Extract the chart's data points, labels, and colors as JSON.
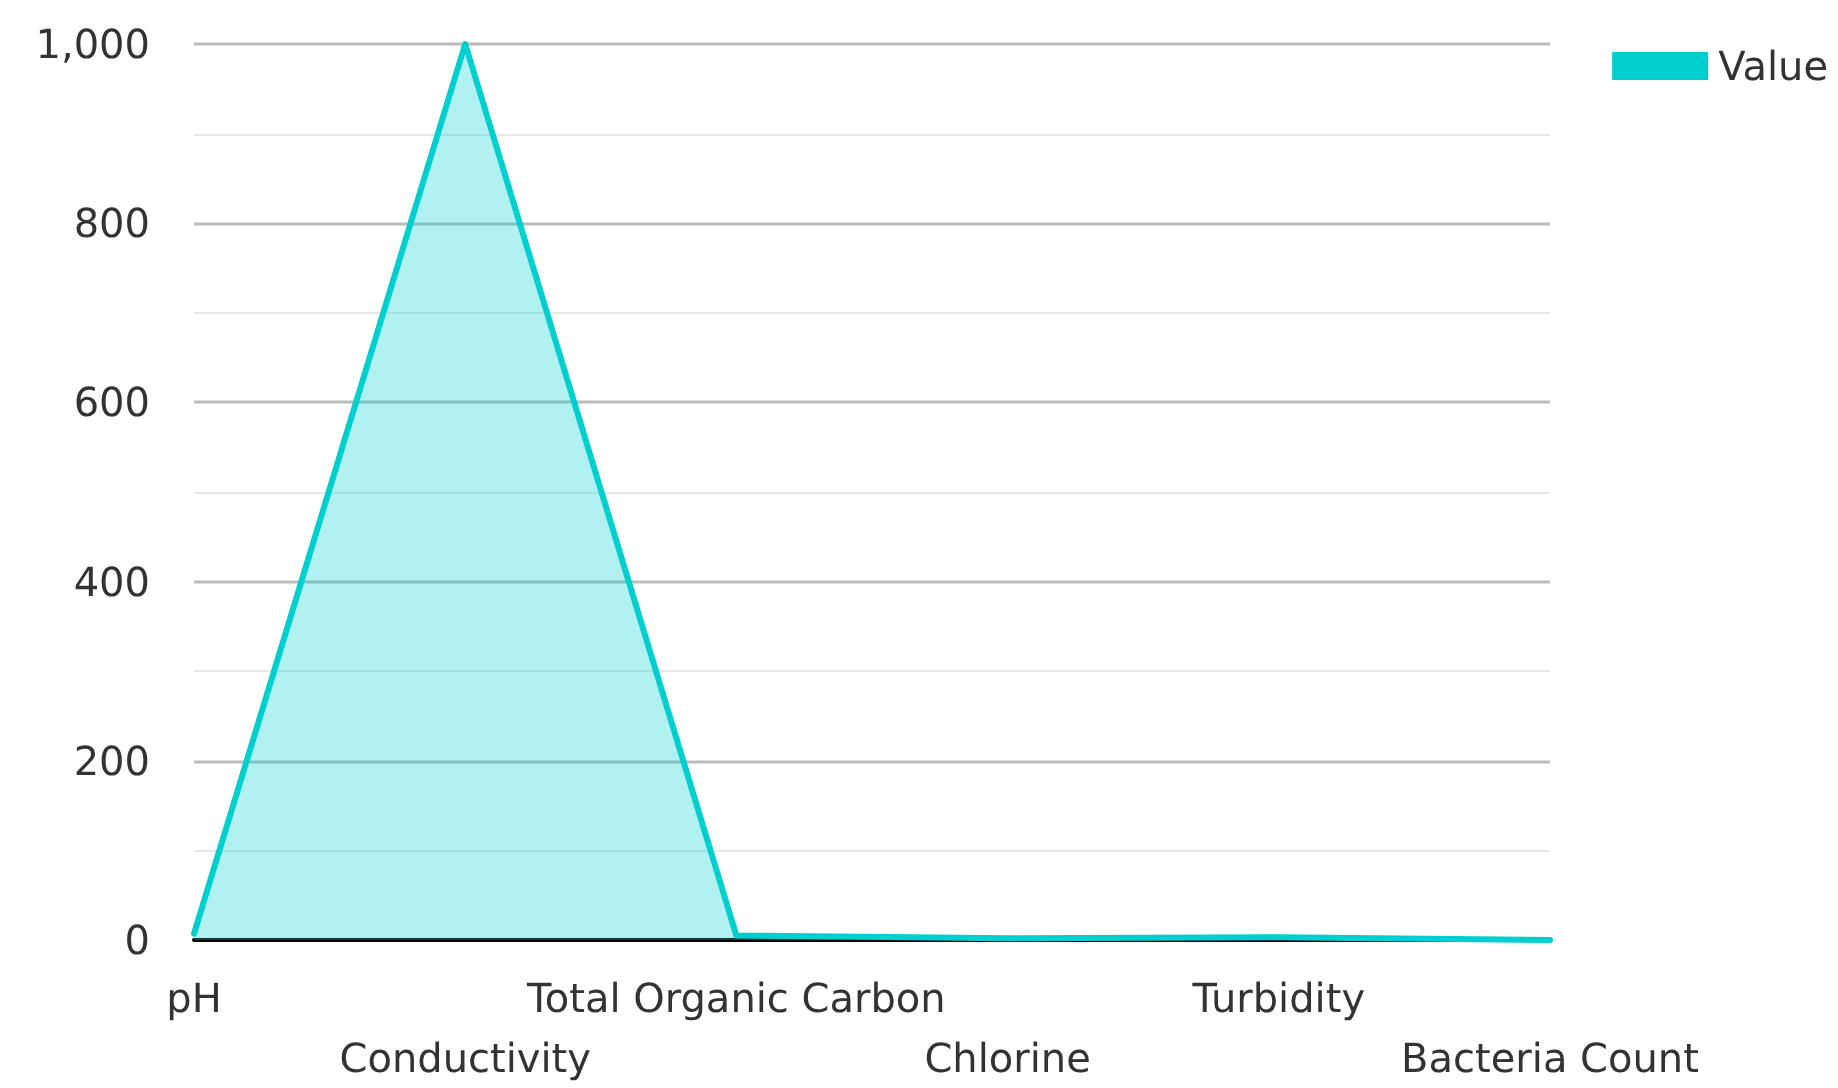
{
  "chart_data": {
    "type": "area",
    "categories": [
      "pH",
      "Conductivity",
      "Total Organic Carbon",
      "Chlorine",
      "Turbidity",
      "Bacteria Count"
    ],
    "series": [
      {
        "name": "Value",
        "color": "#00cfcf",
        "values": [
          7,
          1000,
          5,
          2,
          3,
          0
        ]
      }
    ],
    "ylim": [
      0,
      1000
    ],
    "yticks": [
      0,
      200,
      400,
      600,
      800,
      {
        "value": 1000,
        "label": "1,000"
      }
    ],
    "grid": "y",
    "legend": "top right",
    "marker": "none",
    "line_style": "solid"
  }
}
